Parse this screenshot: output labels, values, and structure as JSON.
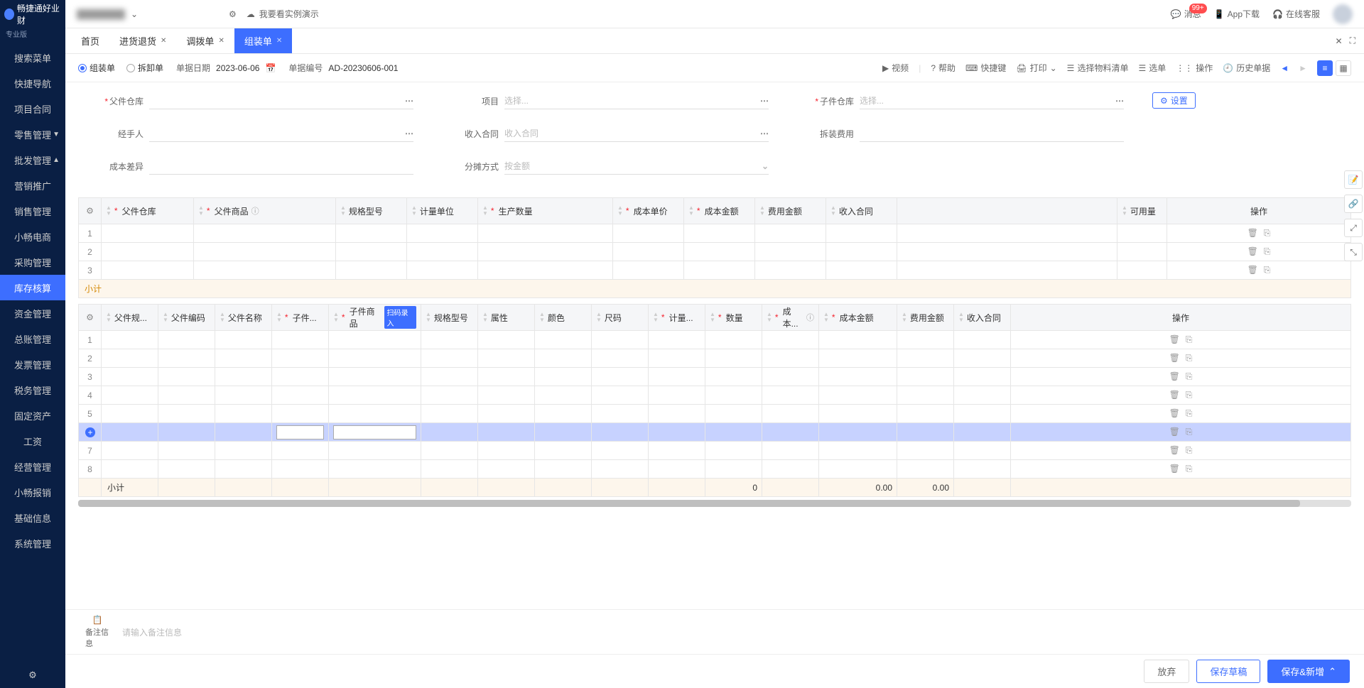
{
  "brand": {
    "name": "畅捷通好业财",
    "edition": "专业版"
  },
  "header": {
    "demo_link": "我要看实例演示",
    "msg_badge": "99+",
    "messages": "消息",
    "app_download": "App下载",
    "online_service": "在线客服"
  },
  "sidebar": {
    "items": [
      {
        "label": "搜索菜单",
        "key": "search"
      },
      {
        "label": "快捷导航",
        "key": "quicknav"
      },
      {
        "label": "项目合同",
        "key": "contract"
      },
      {
        "label": "零售管理",
        "key": "retail",
        "arrow": "▼"
      },
      {
        "label": "批发管理",
        "key": "wholesale",
        "arrow": "▲"
      },
      {
        "label": "营销推广",
        "key": "marketing"
      },
      {
        "label": "销售管理",
        "key": "sales"
      },
      {
        "label": "小畅电商",
        "key": "ecomm"
      },
      {
        "label": "采购管理",
        "key": "purchase"
      },
      {
        "label": "库存核算",
        "key": "inventory",
        "active": true
      },
      {
        "label": "资金管理",
        "key": "funds"
      },
      {
        "label": "总账管理",
        "key": "gl"
      },
      {
        "label": "发票管理",
        "key": "invoice"
      },
      {
        "label": "税务管理",
        "key": "tax"
      },
      {
        "label": "固定资产",
        "key": "asset"
      },
      {
        "label": "工资",
        "key": "salary"
      },
      {
        "label": "经营管理",
        "key": "operation"
      },
      {
        "label": "小畅报销",
        "key": "expense"
      },
      {
        "label": "基础信息",
        "key": "basic"
      },
      {
        "label": "系统管理",
        "key": "system"
      }
    ]
  },
  "tabs": [
    {
      "label": "首页",
      "closable": false
    },
    {
      "label": "进货退货",
      "closable": true
    },
    {
      "label": "调拨单",
      "closable": true
    },
    {
      "label": "组装单",
      "closable": true,
      "active": true
    }
  ],
  "toolbar": {
    "radio": {
      "assemble": "组装单",
      "disassemble": "拆卸单"
    },
    "date_label": "单据日期",
    "date_value": "2023-06-06",
    "docno_label": "单据编号",
    "docno_value": "AD-20230606-001",
    "actions": {
      "video": "视频",
      "help": "帮助",
      "shortcut": "快捷键",
      "print": "打印",
      "bom": "选择物料清单",
      "makeorder": "选单",
      "operate": "操作",
      "history": "历史单据"
    }
  },
  "form": {
    "parent_wh": "父件仓库",
    "project": "项目",
    "child_wh": "子件仓库",
    "select_ph": "选择...",
    "setting": "设置",
    "handler": "经手人",
    "income_contract": "收入合同",
    "income_contract_ph": "收入合同",
    "disassemble_fee": "拆装费用",
    "cost_variance": "成本差异",
    "alloc_method": "分摊方式",
    "alloc_ph": "按金额"
  },
  "table1": {
    "cols": [
      "父件仓库",
      "父件商品",
      "规格型号",
      "计量单位",
      "生产数量",
      "成本单价",
      "成本金额",
      "费用金额",
      "收入合同",
      "",
      "可用量",
      "操作"
    ],
    "required": [
      true,
      true,
      false,
      false,
      true,
      true,
      true,
      false,
      false,
      false,
      false,
      false
    ],
    "rows": [
      1,
      2,
      3
    ],
    "subtotal": "小计"
  },
  "table2": {
    "cols": [
      "父件规...",
      "父件编码",
      "父件名称",
      "子件...",
      "子件商品",
      "规格型号",
      "属性",
      "颜色",
      "尺码",
      "计量...",
      "数量",
      "成本...",
      "成本金额",
      "费用金额",
      "收入合同",
      "操作"
    ],
    "required": [
      false,
      false,
      false,
      true,
      true,
      false,
      false,
      false,
      false,
      true,
      true,
      true,
      true,
      false,
      false,
      false
    ],
    "scan_label": "扫码录入",
    "rows": [
      1,
      2,
      3,
      4,
      5,
      6,
      7,
      8
    ],
    "highlight_row": 6,
    "subtotal": "小计",
    "sum_qty": "0",
    "sum_cost": "0.00",
    "sum_fee": "0.00"
  },
  "notes": {
    "label": "备注信息",
    "placeholder": "请输入备注信息"
  },
  "footer": {
    "discard": "放弃",
    "draft": "保存草稿",
    "save_new": "保存&新增"
  },
  "colors": {
    "primary": "#3d6eff",
    "sidebar_bg": "#0a1f44",
    "warn_bg": "#fdf6ec",
    "highlight": "#c7d2ff"
  }
}
